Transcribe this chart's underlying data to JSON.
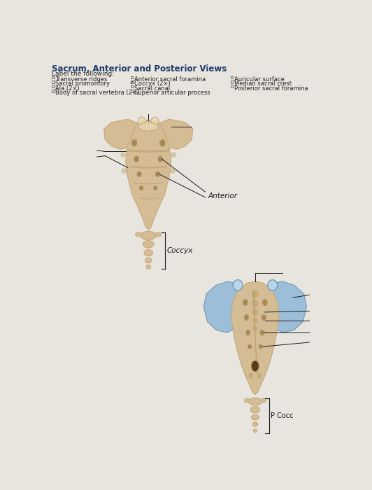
{
  "title": "Sacrum, Anterior and Posterior Views",
  "subtitle": "Label the following:",
  "bg_color": "#e8e4de",
  "legend_col1": [
    "Transverse ridges",
    "Sacral promontory",
    "Ala (2×)",
    "Body of sacral vertebra (2×)"
  ],
  "legend_col2": [
    "Anterior sacral foramina",
    "Coccyx (2×)",
    "Sacral canal",
    "Superior articular process"
  ],
  "legend_col3": [
    "Auricular surface",
    "Median sacral crest",
    "Posterior sacral foramina"
  ],
  "ant_label": "Anterior",
  "cocc_label": "Coccyx",
  "p_cocc_label": "P Cocc",
  "bone_color": "#d4bc94",
  "bone_mid": "#c4a878",
  "bone_dark": "#a08850",
  "bone_light": "#e8d8b4",
  "bone_shadow": "#b09060",
  "blue_color": "#90b8d8",
  "blue_light": "#b8d4e8",
  "line_color": "#1a1a1a",
  "title_color": "#1a3a6c",
  "text_color": "#222222"
}
